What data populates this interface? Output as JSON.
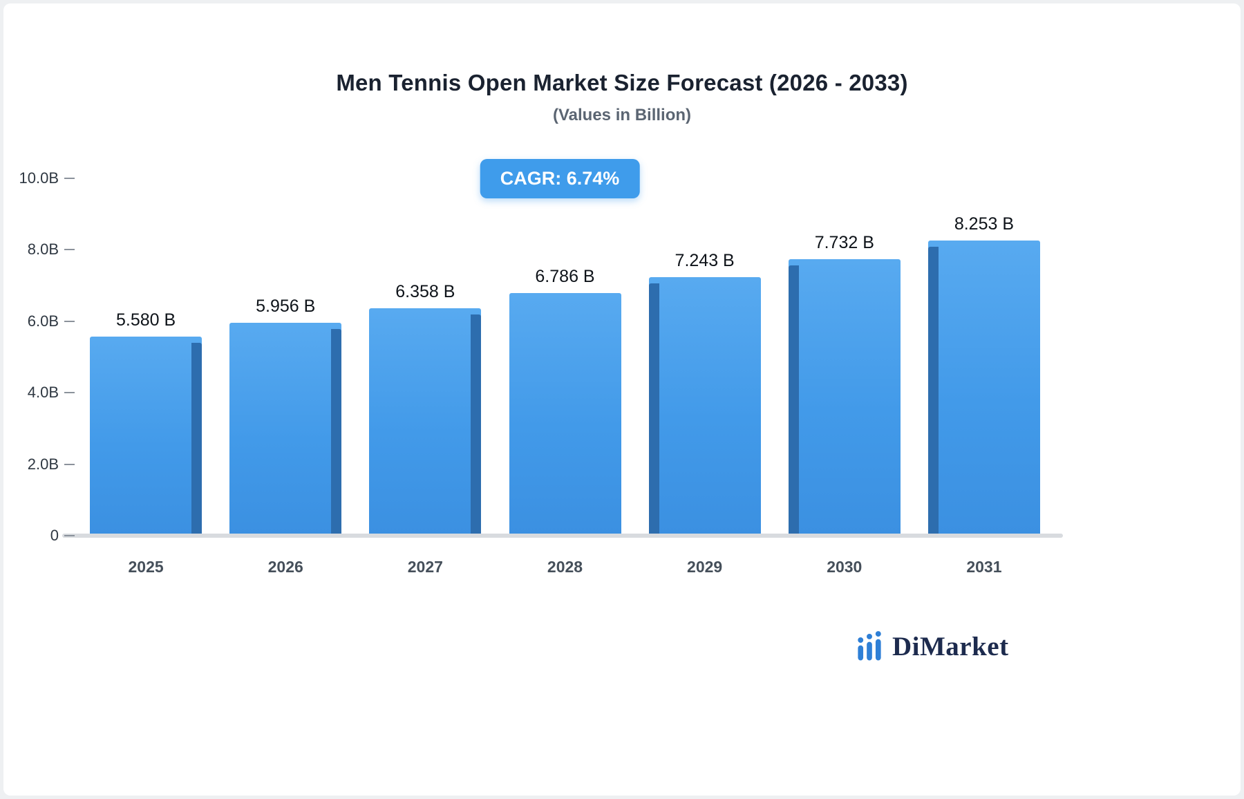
{
  "chart_data": {
    "type": "bar",
    "title": "Men Tennis Open Market Size Forecast (2026 - 2033)",
    "subtitle": "(Values in Billion)",
    "annotation": "CAGR: 6.74%",
    "categories": [
      "2025",
      "2026",
      "2027",
      "2028",
      "2029",
      "2030",
      "2031"
    ],
    "values": [
      5.58,
      5.956,
      6.358,
      6.786,
      7.243,
      7.732,
      8.253
    ],
    "value_labels": [
      "5.580 B",
      "5.956 B",
      "6.358 B",
      "6.786 B",
      "7.243 B",
      "7.732 B",
      "8.253 B"
    ],
    "xlabel": "",
    "ylabel": "",
    "ylim": [
      0,
      10
    ],
    "yticks": [
      {
        "value": 0,
        "label": "0"
      },
      {
        "value": 2,
        "label": "2.0B"
      },
      {
        "value": 4,
        "label": "4.0B"
      },
      {
        "value": 6,
        "label": "6.0B"
      },
      {
        "value": 8,
        "label": "8.0B"
      },
      {
        "value": 10,
        "label": "10.0B"
      }
    ],
    "grid": false,
    "legend": false,
    "bar_color_top": "#58aaf0",
    "bar_color_bottom": "#3b90e1",
    "bar_side_color": "#2d6dae",
    "badge_color": "#3f9ceb"
  },
  "branding": {
    "logo_text": "DiMarket",
    "logo_icon": "bar-chart-icon",
    "logo_color": "#2e7fd6",
    "logo_text_color": "#1d2b4e"
  }
}
